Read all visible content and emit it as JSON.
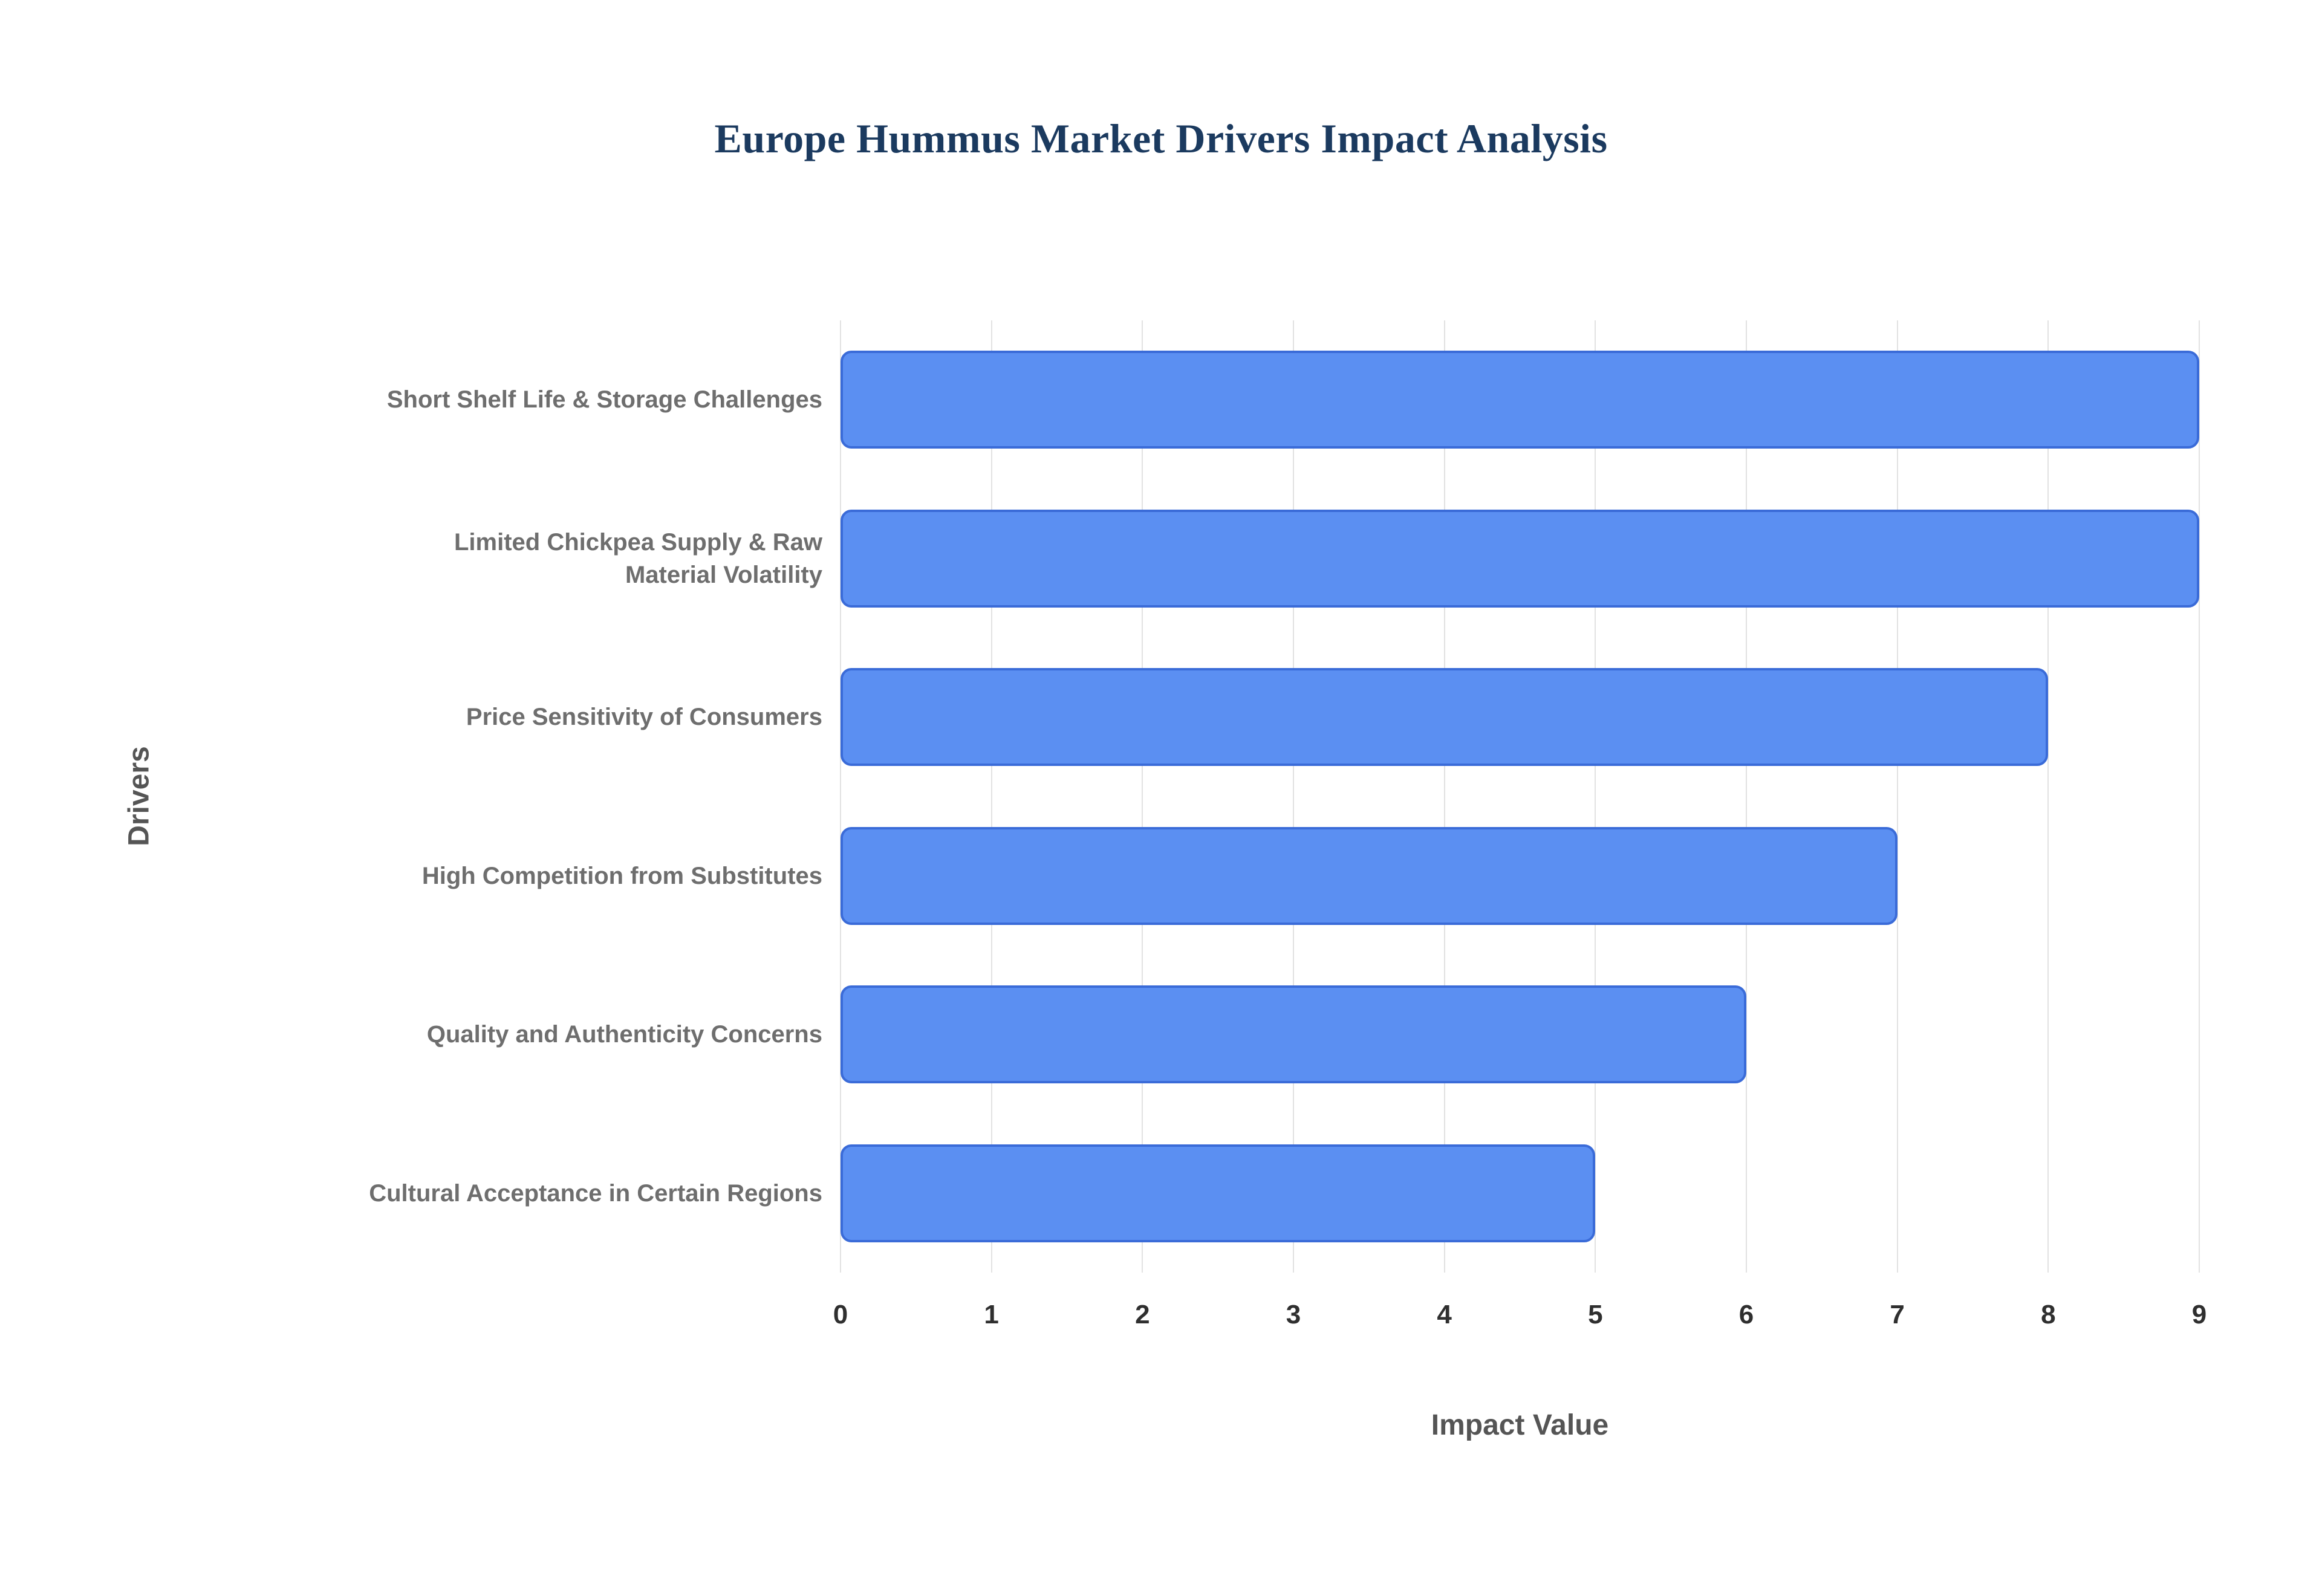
{
  "chart_data": {
    "type": "bar",
    "orientation": "horizontal",
    "title": "Europe Hummus Market Drivers Impact Analysis",
    "xlabel": "Impact Value",
    "ylabel": "Drivers",
    "categories": [
      "Short Shelf Life & Storage Challenges",
      "Limited Chickpea Supply & Raw Material Volatility",
      "Price Sensitivity of Consumers",
      "High Competition from Substitutes",
      "Quality and Authenticity Concerns",
      "Cultural Acceptance in Certain Regions"
    ],
    "values": [
      9,
      9,
      8,
      7,
      6,
      5
    ],
    "xlim": [
      0,
      9
    ],
    "xticks": [
      0,
      1,
      2,
      3,
      4,
      5,
      6,
      7,
      8,
      9
    ],
    "grid": "vertical",
    "legend": "none",
    "bar_color": "#5b8ff2",
    "bar_border_color": "#3a6bd8",
    "title_color": "#1b3a5f",
    "category_label_color": "#6e6e6e",
    "tick_label_color": "#2f2f2f",
    "axis_title_color": "#555555"
  }
}
